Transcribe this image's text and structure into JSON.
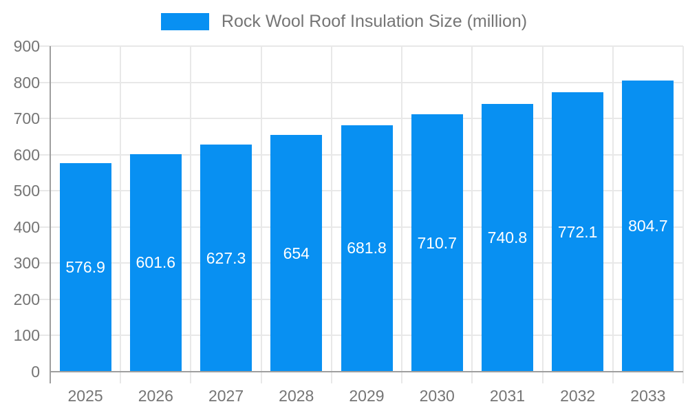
{
  "chart_data": {
    "type": "bar",
    "title": "Rock Wool Roof Insulation Size (million)",
    "categories": [
      "2025",
      "2026",
      "2027",
      "2028",
      "2029",
      "2030",
      "2031",
      "2032",
      "2033"
    ],
    "values": [
      576.9,
      601.6,
      627.3,
      654,
      681.8,
      710.7,
      740.8,
      772.1,
      804.7
    ],
    "series_name": "Rock Wool Roof Insulation Size (million)",
    "xlabel": "",
    "ylabel": "",
    "ylim": [
      0,
      900
    ],
    "ytick_step": 100,
    "ytick_labels": [
      "0",
      "100",
      "200",
      "300",
      "400",
      "500",
      "600",
      "700",
      "800",
      "900"
    ],
    "grid": "horizontal and vertical category boundaries",
    "legend_position": "top-center",
    "value_labels": "centered inside bars",
    "colors": {
      "bar": "#0890F2",
      "axis_line": "#9E9E9E",
      "gridline": "#E8E8E8",
      "tick_label": "#757575",
      "legend_text": "#757575",
      "value_label": "#FFFFFF",
      "background": "#FFFFFF"
    }
  }
}
